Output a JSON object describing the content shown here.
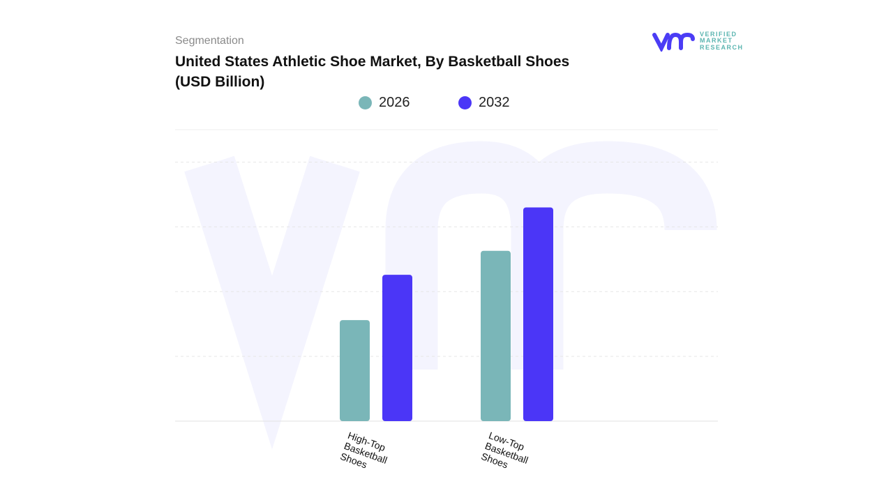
{
  "header": {
    "segment": "Segmentation",
    "title": "United States Athletic Shoe Market, By Basketball Shoes (USD Billion)"
  },
  "logo": {
    "line1": "VERIFIED",
    "line2": "MARKET",
    "line3": "RESEARCH",
    "brand_color": "#4b3cf5",
    "text_color": "#5bb5b0"
  },
  "chart_data": {
    "type": "bar",
    "title": "United States Athletic Shoe Market, By Basketball Shoes (USD Billion)",
    "categories": [
      "High-Top Basketball Shoes",
      "Low-Top Basketball Shoes"
    ],
    "series": [
      {
        "name": "2026",
        "color": "#7ab6b8",
        "values": [
          1.56,
          2.63
        ]
      },
      {
        "name": "2032",
        "color": "#4b36f7",
        "values": [
          2.26,
          3.3
        ]
      }
    ],
    "ylim": [
      0,
      4.5
    ],
    "grid": true,
    "y_tick_labels_shown": false,
    "legend_placement": "top-center",
    "note": "values estimated relative to unlabeled gridlines"
  }
}
